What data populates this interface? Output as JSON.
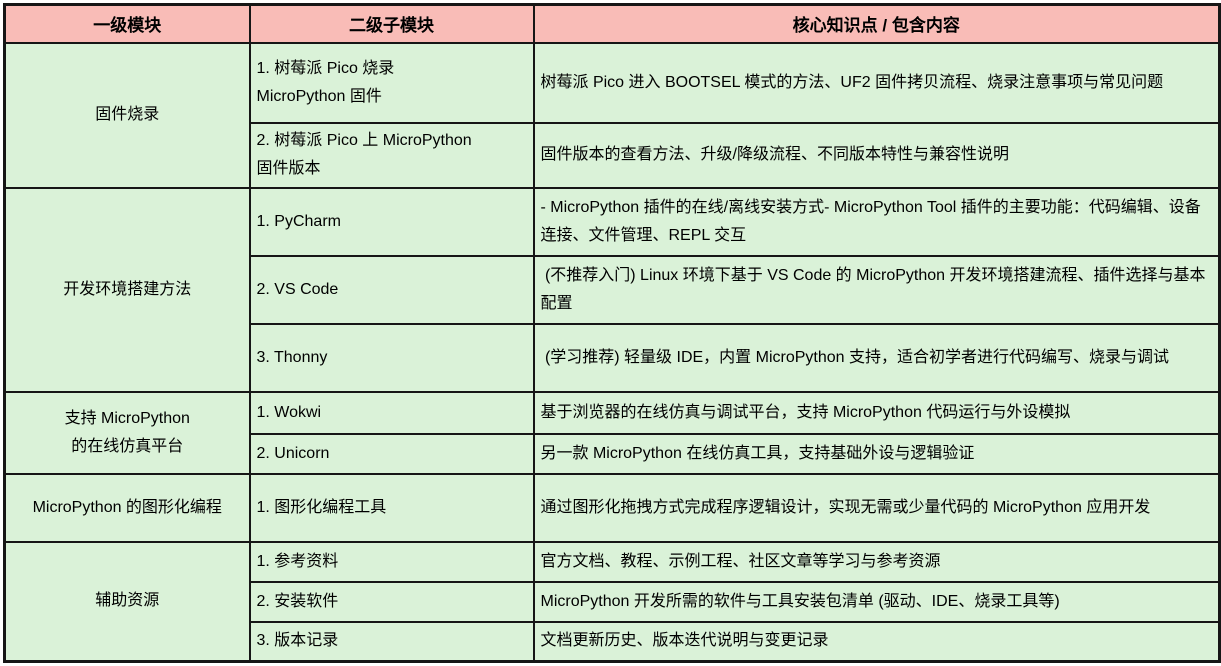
{
  "colors": {
    "header_bg": "#f9bcb7",
    "body_bg": "#daf2d8",
    "border": "#161616",
    "text": "#000000"
  },
  "table": {
    "header": {
      "columns": [
        "一级模块",
        "二级子模块",
        "核心知识点 / 包含内容"
      ]
    },
    "sections": [
      {
        "module": "固件烧录",
        "rows": [
          {
            "sub": "1. 树莓派 Pico 烧录\nMicroPython 固件",
            "content": "树莓派 Pico 进入 BOOTSEL 模式的方法、UF2 固件拷贝流程、烧录注意事项与常见问题"
          },
          {
            "sub": "2. 树莓派 Pico 上 MicroPython\n固件版本",
            "content": "固件版本的查看方法、升级/降级流程、不同版本特性与兼容性说明"
          }
        ]
      },
      {
        "module": "开发环境搭建方法",
        "rows": [
          {
            "sub": "1. PyCharm",
            "content": "- MicroPython 插件的在线/离线安装方式- MicroPython Tool 插件的主要功能：代码编辑、设备连接、文件管理、REPL 交互"
          },
          {
            "sub": "2. VS Code",
            "content": " (不推荐入门) Linux 环境下基于 VS Code 的 MicroPython 开发环境搭建流程、插件选择与基本配置"
          },
          {
            "sub": "3. Thonny",
            "content": " (学习推荐) 轻量级 IDE，内置 MicroPython 支持，适合初学者进行代码编写、烧录与调试"
          }
        ]
      },
      {
        "module": "支持 MicroPython\n的在线仿真平台",
        "rows": [
          {
            "sub": "1. Wokwi",
            "content": "基于浏览器的在线仿真与调试平台，支持 MicroPython 代码运行与外设模拟"
          },
          {
            "sub": "2. Unicorn",
            "content": "另一款 MicroPython 在线仿真工具，支持基础外设与逻辑验证"
          }
        ]
      },
      {
        "module": "MicroPython 的图形化编程",
        "rows": [
          {
            "sub": "1. 图形化编程工具",
            "content": "通过图形化拖拽方式完成程序逻辑设计，实现无需或少量代码的 MicroPython 应用开发"
          }
        ]
      },
      {
        "module": "辅助资源",
        "rows": [
          {
            "sub": "1. 参考资料",
            "content": "官方文档、教程、示例工程、社区文章等学习与参考资源"
          },
          {
            "sub": "2. 安装软件",
            "content": "MicroPython 开发所需的软件与工具安装包清单 (驱动、IDE、烧录工具等)"
          },
          {
            "sub": "3. 版本记录",
            "content": "文档更新历史、版本迭代说明与变更记录"
          }
        ]
      }
    ]
  }
}
